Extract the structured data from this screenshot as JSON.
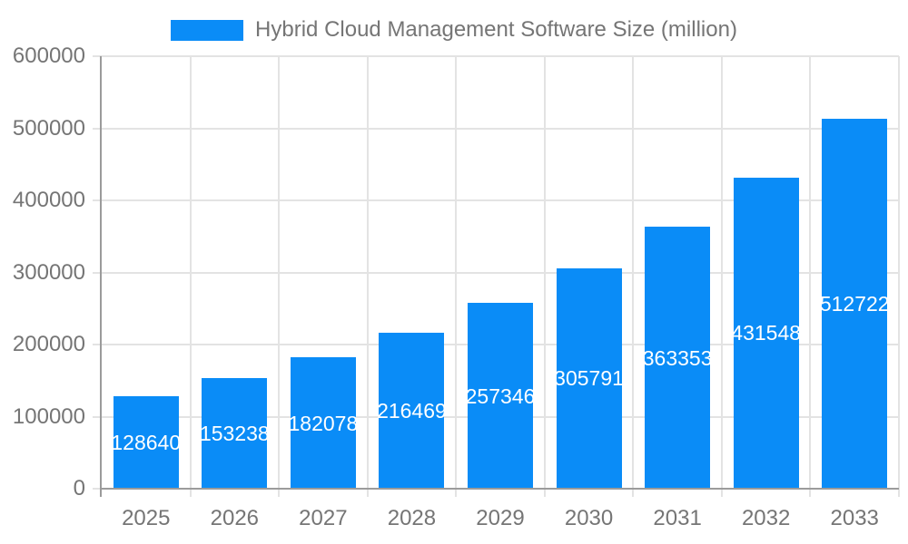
{
  "chart_data": {
    "type": "bar",
    "title": "Hybrid Cloud Management Software Size (million)",
    "categories": [
      "2025",
      "2026",
      "2027",
      "2028",
      "2029",
      "2030",
      "2031",
      "2032",
      "2033"
    ],
    "values": [
      128640,
      153238,
      182078,
      216469,
      257346,
      305791,
      363353,
      431548,
      512722
    ],
    "value_labels": [
      "128640",
      "153238",
      "182078",
      "216469",
      "257346",
      "305791",
      "363353",
      "431548",
      "512722"
    ],
    "xlabel": "",
    "ylabel": "",
    "ylim": [
      0,
      600000
    ],
    "yticks": [
      0,
      100000,
      200000,
      300000,
      400000,
      500000,
      600000
    ],
    "ytick_labels": [
      "0",
      "100000",
      "200000",
      "300000",
      "400000",
      "500000",
      "600000"
    ],
    "grid": true,
    "legend": {
      "label": "Hybrid Cloud Management Software Size (million)",
      "position": "top",
      "swatch_color": "#0a8cf7"
    },
    "colors": {
      "bar": "#0a8cf7",
      "value_label": "#ffffff",
      "axis": "#9b9b9b",
      "grid": "#e3e3e3",
      "tick_text": "#757575"
    }
  }
}
